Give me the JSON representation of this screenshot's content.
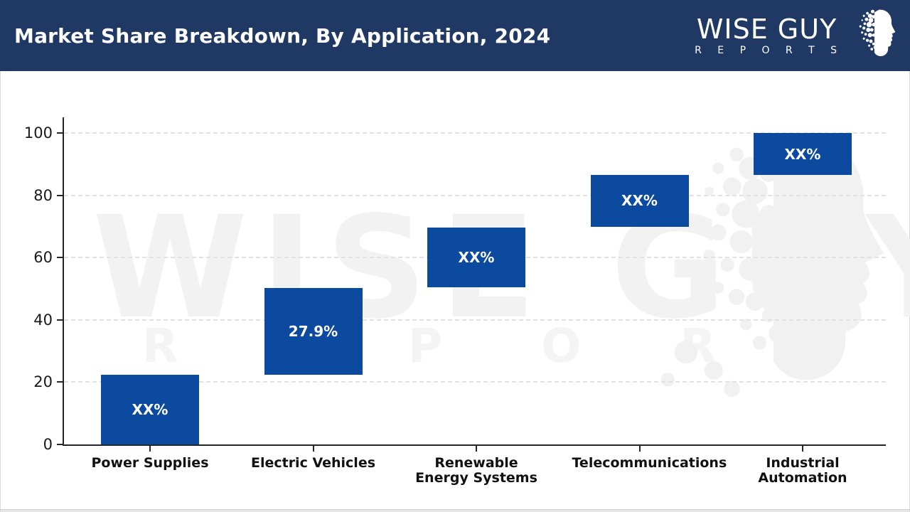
{
  "header": {
    "title": "Market Share Breakdown, By Application, 2024",
    "logo": {
      "line1": "WISE GUY",
      "line2": "R E P O R T S"
    }
  },
  "watermark": {
    "line1": "WISE GUY",
    "line2": "R E P O R T S"
  },
  "colors": {
    "header_bg": "#1f3864",
    "bar": "#0b4a9e",
    "bar_label": "#ffffff",
    "gridline": "#e2e2e2",
    "axis": "#262626",
    "watermark": "#f2f2f2"
  },
  "chart_data": {
    "type": "bar",
    "subtype": "waterfall",
    "title": "Market Share Breakdown, By Application, 2024",
    "categories": [
      "Power Supplies",
      "Electric Vehicles",
      "Renewable Energy Systems",
      "Telecommunications",
      "Industrial Automation"
    ],
    "segments": [
      {
        "category": "Power Supplies",
        "start": 0,
        "end": 22.4,
        "label": "XX%"
      },
      {
        "category": "Electric Vehicles",
        "start": 22.4,
        "end": 50.3,
        "label": "27.9%",
        "value": 27.9
      },
      {
        "category": "Renewable Energy Systems",
        "start": 50.5,
        "end": 69.7,
        "label": "XX%"
      },
      {
        "category": "Telecommunications",
        "start": 69.9,
        "end": 86.5,
        "label": "XX%"
      },
      {
        "category": "Industrial Automation",
        "start": 86.6,
        "end": 99.9,
        "label": "XX%"
      }
    ],
    "yticks": [
      0,
      20,
      40,
      60,
      80,
      100
    ],
    "ylim": [
      0,
      105
    ],
    "xlabel": "",
    "ylabel": "",
    "grid": "dashed-horizontal",
    "legend": "none"
  }
}
